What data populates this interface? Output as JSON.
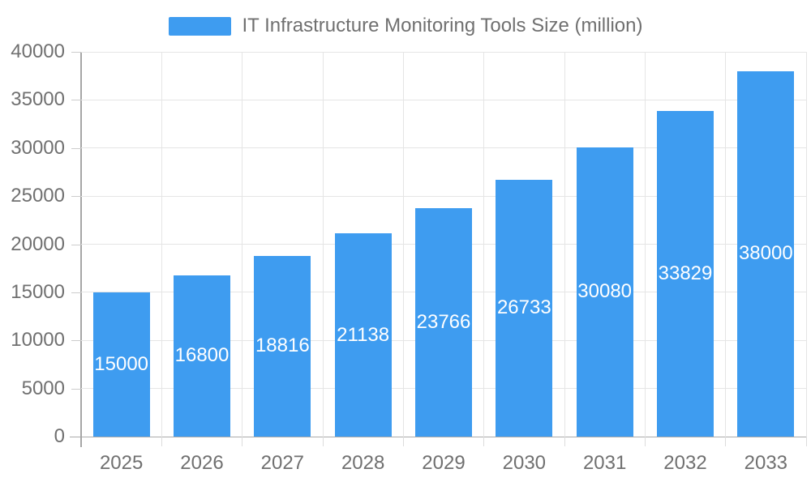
{
  "chart_data": {
    "type": "bar",
    "title": "IT Infrastructure Monitoring Tools Size (million)",
    "series_name": "IT Infrastructure Monitoring Tools Size (million)",
    "categories": [
      "2025",
      "2026",
      "2027",
      "2028",
      "2029",
      "2030",
      "2031",
      "2032",
      "2033"
    ],
    "values": [
      15000,
      16800,
      18816,
      21138,
      23766,
      26733,
      30080,
      33829,
      38000
    ],
    "xlabel": "",
    "ylabel": "",
    "ylim": [
      0,
      40000
    ],
    "yticks": [
      0,
      5000,
      10000,
      15000,
      20000,
      25000,
      30000,
      35000,
      40000
    ],
    "grid": true,
    "legend_position": "top",
    "value_labels": "inside-center",
    "bar_color": "#3e9cf0",
    "value_label_color": "#ffffff",
    "axis_label_color": "#707070"
  }
}
